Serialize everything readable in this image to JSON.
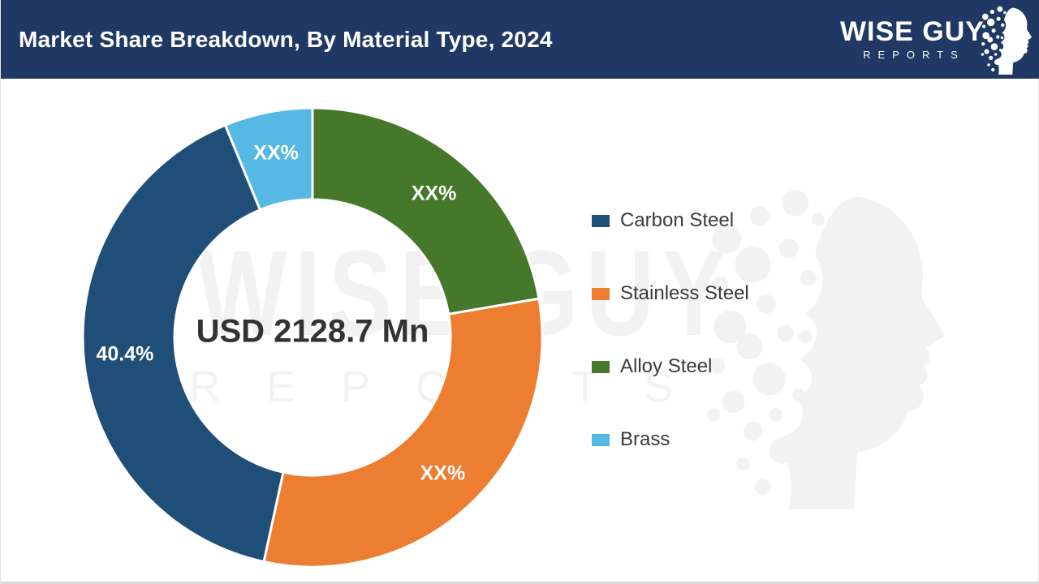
{
  "header": {
    "title": "Market Share Breakdown, By Material Type, 2024",
    "logo": {
      "line1": "WISE GUY",
      "line2": "REPORTS"
    }
  },
  "watermark": {
    "line1": "WISE GUY",
    "line2": "REPORTS"
  },
  "chart_data": {
    "type": "pie",
    "donut": true,
    "title": "Market Share Breakdown, By Material Type, 2024",
    "center_label": "USD 2128.7 Mn",
    "start_angle_deg": 0,
    "clockwise": true,
    "segments": [
      {
        "name": "Alloy Steel",
        "value_pct": 22.3,
        "display_label": "XX%",
        "color": "#45782B"
      },
      {
        "name": "Stainless Steel",
        "value_pct": 31.1,
        "display_label": "XX%",
        "color": "#ED7D31"
      },
      {
        "name": "Carbon Steel",
        "value_pct": 40.4,
        "display_label": "40.4%",
        "color": "#1F4E79"
      },
      {
        "name": "Brass",
        "value_pct": 6.2,
        "display_label": "XX%",
        "color": "#56B9E4"
      }
    ],
    "legend_position": "right",
    "legend": [
      {
        "label": "Carbon Steel",
        "color": "#1F4E79"
      },
      {
        "label": "Stainless Steel",
        "color": "#ED7D31"
      },
      {
        "label": "Alloy Steel",
        "color": "#45782B"
      },
      {
        "label": "Brass",
        "color": "#56B9E4"
      }
    ]
  },
  "colors": {
    "header_bg": "#1F3864",
    "content_bg": "#FFFFFF",
    "center_text": "#333333",
    "legend_text": "#3A3A3A",
    "watermark": "#F2F2F2",
    "bottom_line": "#D9D9D9"
  }
}
